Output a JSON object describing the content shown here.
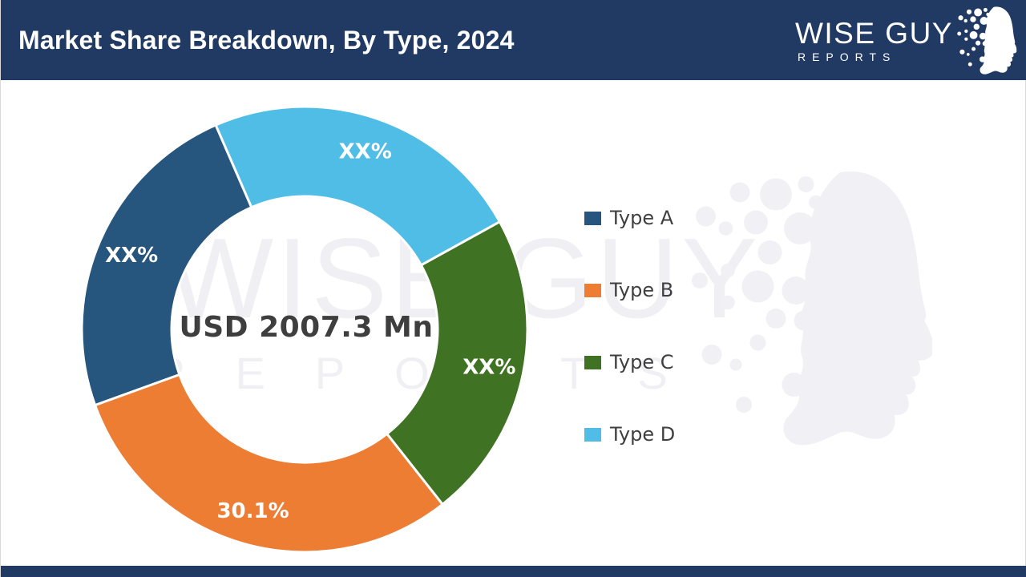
{
  "header": {
    "title": "Market Share Breakdown, By Type, 2024",
    "logo": {
      "line1": "WISE GUY",
      "line2": "REPORTS"
    }
  },
  "watermark": {
    "line1": "WISE GUY",
    "line2": "REPORTS"
  },
  "chart_data": {
    "type": "pie",
    "subtype": "donut",
    "title": "Market Share Breakdown, By Type, 2024",
    "center_label": "USD 2007.3 Mn",
    "legend_position": "right",
    "start_angle_deg": 336.5,
    "direction": "counterclockwise",
    "slices": [
      {
        "name": "Type A",
        "value": 24.0,
        "label": "XX%",
        "color": "#26567D"
      },
      {
        "name": "Type B",
        "value": 30.1,
        "label": "30.1%",
        "color": "#EC7D33"
      },
      {
        "name": "Type C",
        "value": 22.4,
        "label": "XX%",
        "color": "#407223"
      },
      {
        "name": "Type D",
        "value": 23.5,
        "label": "XX%",
        "color": "#4FBDE6"
      }
    ]
  },
  "colors": {
    "header_bg": "#203A64",
    "footer_bg": "#203A64",
    "center_text": "#3E3E3E",
    "legend_text": "#3F3F3F",
    "slice_label_text": "#FFFFFF",
    "watermark": "#F0F0F4",
    "slice_gap_stroke": "#FFFFFF"
  }
}
